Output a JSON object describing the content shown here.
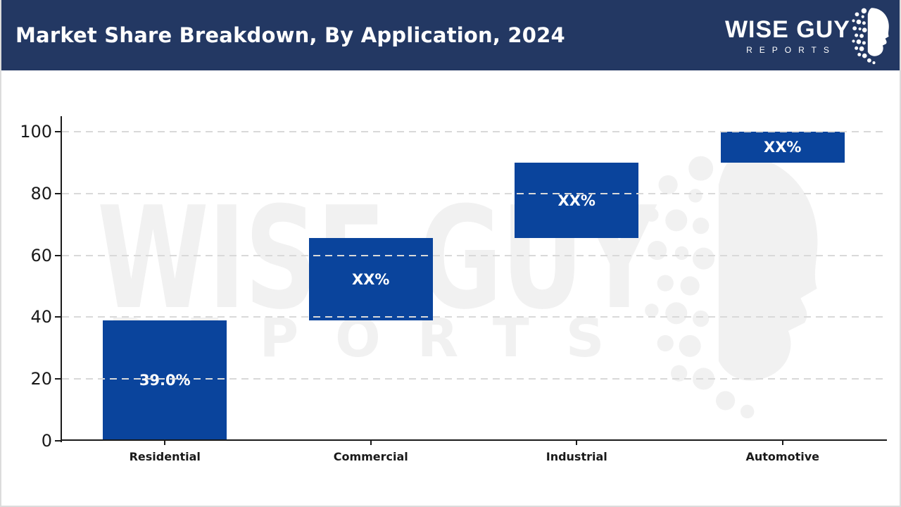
{
  "header": {
    "logo": {
      "line1": "WISE GUY",
      "line2": "REPORTS"
    }
  },
  "watermark": {
    "line1": "WISE GUY",
    "line2": "REPORTS"
  },
  "colors": {
    "header_navy": "#233863",
    "bar_blue": "#0a449c",
    "grid_gray": "#d9d9d9",
    "watermark_gray": "#f1f1f1"
  },
  "chart_data": {
    "type": "bar",
    "subtype": "floating-waterfall",
    "title": "Market Share Breakdown, By Application, 2024",
    "categories": [
      "Residential",
      "Commercial",
      "Industrial",
      "Automotive"
    ],
    "segments": [
      {
        "category": "Residential",
        "start": 0,
        "end": 39,
        "size": 39.0,
        "label": "39.0%"
      },
      {
        "category": "Commercial",
        "start": 39,
        "end": 65.5,
        "size": 26.5,
        "label": "XX%"
      },
      {
        "category": "Industrial",
        "start": 65.5,
        "end": 90,
        "size": 24.5,
        "label": "XX%"
      },
      {
        "category": "Automotive",
        "start": 90,
        "end": 100,
        "size": 10.0,
        "label": "XX%"
      }
    ],
    "y_ticks": [
      0,
      20,
      40,
      60,
      80,
      100
    ],
    "ylim": [
      0,
      105
    ],
    "xlabel": "",
    "ylabel": "",
    "grid": "horizontal-dashed",
    "legend": "none",
    "value_label_color": "#ffffff"
  }
}
